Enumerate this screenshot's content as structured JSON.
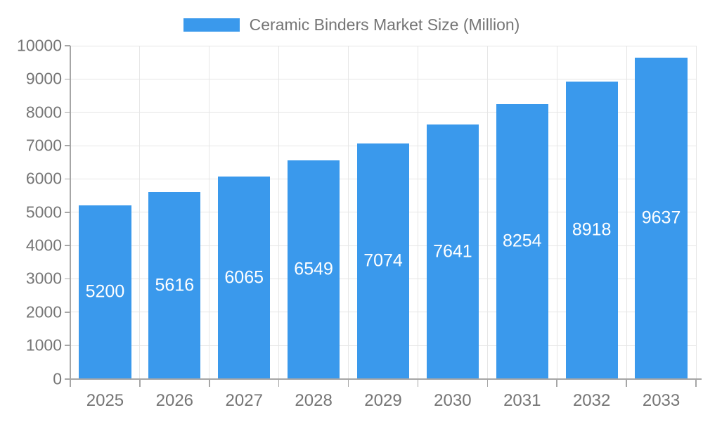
{
  "chart_data": {
    "type": "bar",
    "title": "Ceramic Binders Market Size (Million)",
    "legend": "Ceramic Binders Market Size (Million)",
    "legend_position": "top-center",
    "categories": [
      "2025",
      "2026",
      "2027",
      "2028",
      "2029",
      "2030",
      "2031",
      "2032",
      "2033"
    ],
    "series": [
      {
        "name": "Ceramic Binders Market Size (Million)",
        "values": [
          5200,
          5616,
          6065,
          6549,
          7074,
          7641,
          8254,
          8918,
          9637
        ]
      }
    ],
    "value_labels": [
      "5200",
      "5616",
      "6065",
      "6549",
      "7074",
      "7641",
      "8254",
      "8918",
      "9637"
    ],
    "xlabel": "",
    "ylabel": "",
    "ylim": [
      0,
      10000
    ],
    "ytick_interval": 1000,
    "ytick_labels": [
      "0",
      "1000",
      "2000",
      "3000",
      "4000",
      "5000",
      "6000",
      "7000",
      "8000",
      "9000",
      "10000"
    ],
    "grid": true,
    "colors": {
      "bar": "#3a99ec",
      "value_label": "#ffffff",
      "axis_text": "#757575",
      "axis_line": "#a6a6a6",
      "gridline": "#e6e6e6",
      "background": "#ffffff"
    }
  }
}
